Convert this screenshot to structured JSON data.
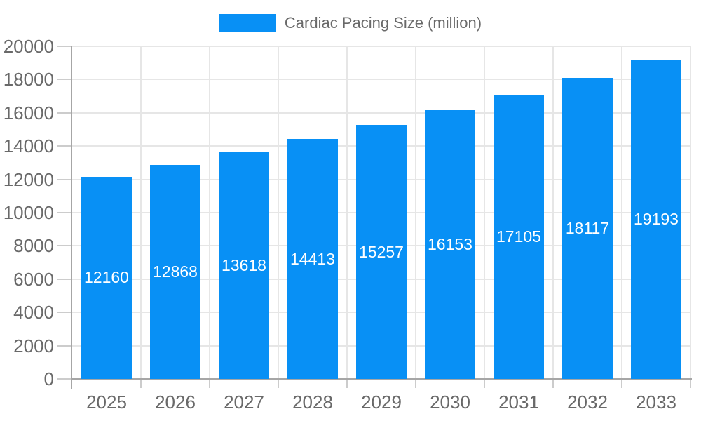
{
  "legend": {
    "label": "Cardiac Pacing Size (million)"
  },
  "chart_data": {
    "type": "bar",
    "title": "Cardiac Pacing Size (million)",
    "categories": [
      "2025",
      "2026",
      "2027",
      "2028",
      "2029",
      "2030",
      "2031",
      "2032",
      "2033"
    ],
    "values": [
      12160,
      12868,
      13618,
      14413,
      15257,
      16153,
      17105,
      18117,
      19193
    ],
    "xlabel": "",
    "ylabel": "",
    "ylim": [
      0,
      20000
    ],
    "y_tick_step": 2000,
    "y_ticks": [
      0,
      2000,
      4000,
      6000,
      8000,
      10000,
      12000,
      14000,
      16000,
      18000,
      20000
    ],
    "grid": "on",
    "legend_position": "top-center",
    "value_labels": "inside-bar-centered",
    "colors": {
      "bar": "#0890f5",
      "value_label": "#ffffff",
      "axis_text": "#696969",
      "legend_text": "#696969",
      "grid_line": "#e6e6e6",
      "tick_line": "#cccccc",
      "axis_line": "#a6a6a6",
      "background": "#ffffff"
    }
  }
}
